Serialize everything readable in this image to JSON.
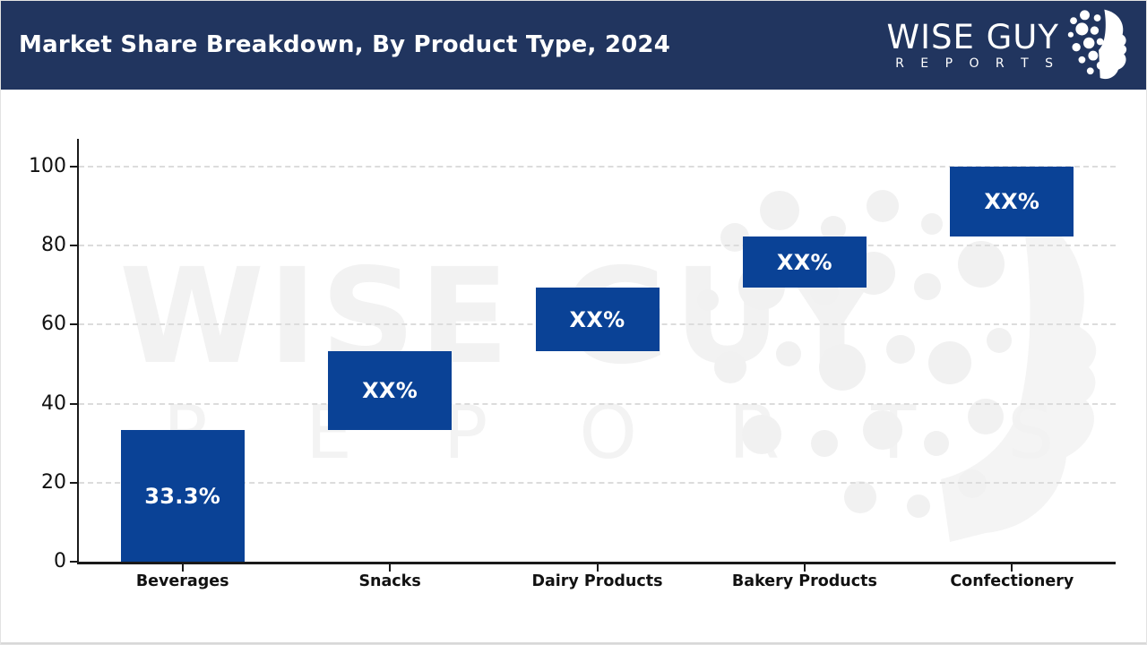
{
  "header": {
    "title": "Market Share Breakdown, By Product Type, 2024",
    "logo": {
      "line1": "WISE GUY",
      "line2": "R E P O R T S"
    }
  },
  "watermark": {
    "line1": "WISE GUY",
    "line2": "R E P O R T S"
  },
  "colors": {
    "header_bg": "#21355f",
    "bar": "#0a4296",
    "grid": "#dcdcdc",
    "axis": "#1a1a1a",
    "bar_label": "#ffffff",
    "watermark": "#f2f2f2"
  },
  "chart_data": {
    "type": "bar",
    "subtype": "waterfall",
    "title": "Market Share Breakdown, By Product Type, 2024",
    "categories": [
      "Beverages",
      "Snacks",
      "Dairy Products",
      "Bakery Products",
      "Confectionery"
    ],
    "series": [
      {
        "name": "Market Share",
        "ranges": [
          [
            0,
            33.3
          ],
          [
            33.3,
            53.3
          ],
          [
            53.3,
            69.3
          ],
          [
            69.3,
            82.3
          ],
          [
            82.3,
            100
          ]
        ]
      }
    ],
    "bar_labels": [
      "33.3%",
      "XX%",
      "XX%",
      "XX%",
      "XX%"
    ],
    "xlabel": "",
    "ylabel": "",
    "yticks": [
      0,
      20,
      40,
      60,
      80,
      100
    ],
    "ylim": [
      0,
      105
    ],
    "grid": "horizontal-dashed",
    "legend": "none"
  }
}
